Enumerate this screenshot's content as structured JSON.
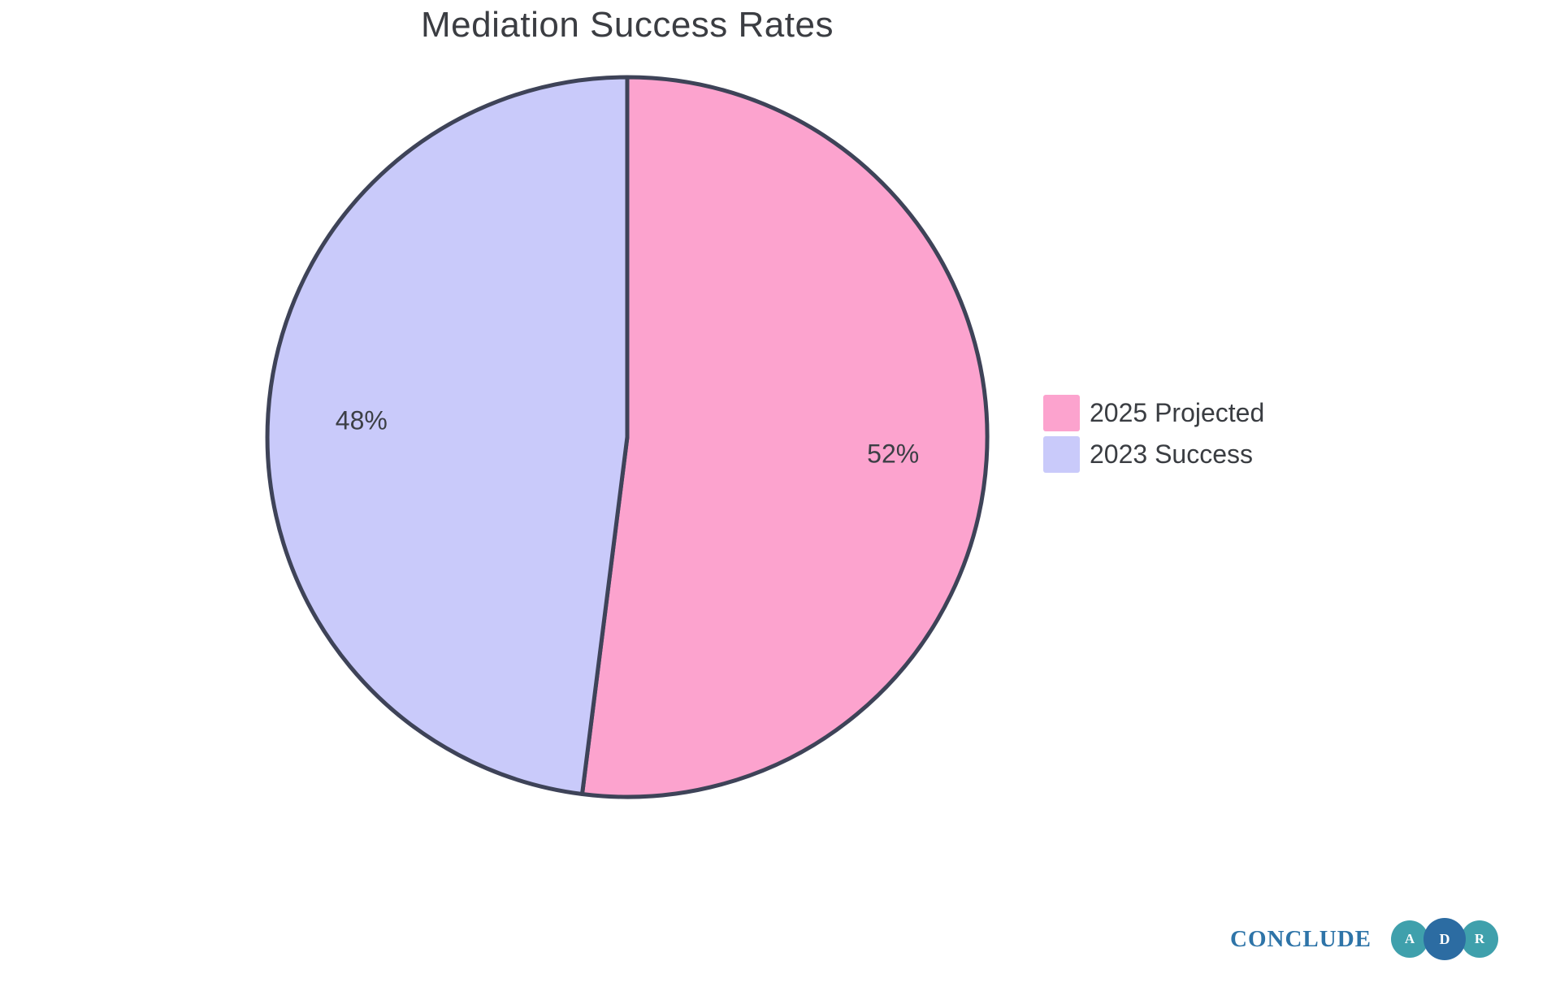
{
  "chart_data": {
    "type": "pie",
    "title": "Mediation Success Rates",
    "slices": [
      {
        "label": "2025 Projected",
        "value": 52,
        "display_label": "52%",
        "color": "#FCA3CE"
      },
      {
        "label": "2023 Success",
        "value": 48,
        "display_label": "48%",
        "color": "#C9CAFA"
      }
    ],
    "start_angle": "12-oclock-clockwise",
    "stroke_color": "#3E4358",
    "label_color": "#3C3F45",
    "legend_position": "right",
    "legend_entries": [
      "2025 Projected",
      "2023 Success"
    ]
  },
  "logo": {
    "brand": "CONCLUDE",
    "brand_color": "#2E74A8",
    "letters": [
      "A",
      "D",
      "R"
    ],
    "letter_colors": [
      "#3FA0AC",
      "#2C6CA2",
      "#3FA0AC"
    ]
  }
}
